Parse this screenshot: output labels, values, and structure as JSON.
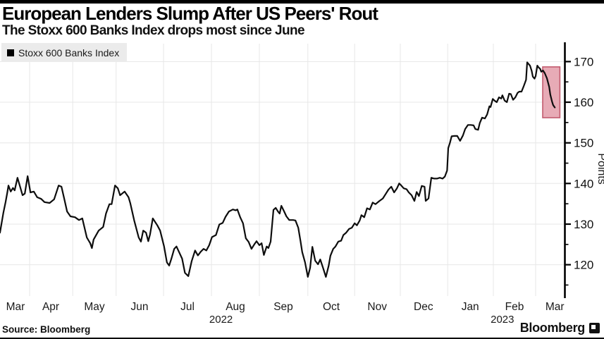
{
  "header": {
    "title": "European Lenders Slump After US Peers' Rout",
    "subtitle": "The Stoxx 600 Banks Index drops most since June"
  },
  "legend": {
    "label": "Stoxx 600 Banks Index",
    "marker_color": "#000000",
    "bg_color": "#ebebeb"
  },
  "footer": {
    "source": "Source: Bloomberg",
    "brand": "Bloomberg"
  },
  "chart_data": {
    "type": "line",
    "title": "European Lenders Slump After US Peers' Rout",
    "subtitle": "The Stoxx 600 Banks Index drops most since June",
    "ylabel": "Points",
    "xlabel": "",
    "x_range": [
      "Mar 2022",
      "Mar 2023"
    ],
    "grid": true,
    "grid_color": "#e7e7e7",
    "line_color": "#0d0d0d",
    "axis_color": "#000000",
    "y_axis": {
      "major_ticks": [
        120,
        130,
        140,
        150,
        160,
        170
      ],
      "minor_ticks": [
        115,
        125,
        135,
        145,
        155,
        165
      ],
      "vmin": 112.3,
      "vmax": 174.4
    },
    "x_axis": {
      "gridlines_t": [
        0.0525,
        0.129,
        0.206,
        0.29,
        0.375,
        0.46,
        0.546,
        0.629,
        0.71,
        0.794,
        0.875,
        0.95
      ],
      "month_labels": [
        {
          "text": "Mar",
          "t": 0.0275
        },
        {
          "text": "Apr",
          "t": 0.09
        },
        {
          "text": "May",
          "t": 0.1675
        },
        {
          "text": "Jun",
          "t": 0.2475
        },
        {
          "text": "Jul",
          "t": 0.3325
        },
        {
          "text": "Aug",
          "t": 0.4175
        },
        {
          "text": "Sep",
          "t": 0.5025
        },
        {
          "text": "Oct",
          "t": 0.5875
        },
        {
          "text": "Nov",
          "t": 0.669
        },
        {
          "text": "Dec",
          "t": 0.751
        },
        {
          "text": "Jan",
          "t": 0.834
        },
        {
          "text": "Feb",
          "t": 0.9125
        },
        {
          "text": "Mar",
          "t": 0.984
        }
      ],
      "year_labels": [
        {
          "text": "2022",
          "t": 0.392
        },
        {
          "text": "2023",
          "t": 0.891
        }
      ]
    },
    "highlight": {
      "name": "recent-slump-highlight",
      "t0": 0.9625,
      "t1": 0.993,
      "v0": 156.2,
      "v1": 168.7,
      "fill": "#e7abb6",
      "stroke": "#c25b6e"
    },
    "series": [
      {
        "name": "Stoxx 600 Banks Index",
        "color": "#0d0d0d",
        "points": [
          [
            0.0,
            127.9
          ],
          [
            0.006,
            132.8
          ],
          [
            0.01,
            135.5
          ],
          [
            0.013,
            137.8
          ],
          [
            0.015,
            139.5
          ],
          [
            0.019,
            138.0
          ],
          [
            0.023,
            138.9
          ],
          [
            0.026,
            138.3
          ],
          [
            0.031,
            141.4
          ],
          [
            0.035,
            139.5
          ],
          [
            0.04,
            137.1
          ],
          [
            0.044,
            137.5
          ],
          [
            0.049,
            141.8
          ],
          [
            0.054,
            137.8
          ],
          [
            0.06,
            138.0
          ],
          [
            0.066,
            136.6
          ],
          [
            0.073,
            136.2
          ],
          [
            0.079,
            135.4
          ],
          [
            0.088,
            135.2
          ],
          [
            0.096,
            136.1
          ],
          [
            0.104,
            139.5
          ],
          [
            0.109,
            139.2
          ],
          [
            0.114,
            136.2
          ],
          [
            0.119,
            133.1
          ],
          [
            0.125,
            131.9
          ],
          [
            0.133,
            131.7
          ],
          [
            0.14,
            131.0
          ],
          [
            0.146,
            131.4
          ],
          [
            0.154,
            126.7
          ],
          [
            0.16,
            125.3
          ],
          [
            0.163,
            124.1
          ],
          [
            0.166,
            126.2
          ],
          [
            0.175,
            128.4
          ],
          [
            0.183,
            129.3
          ],
          [
            0.188,
            132.6
          ],
          [
            0.194,
            134.9
          ],
          [
            0.198,
            134.9
          ],
          [
            0.204,
            139.5
          ],
          [
            0.209,
            138.8
          ],
          [
            0.213,
            137.1
          ],
          [
            0.221,
            138.0
          ],
          [
            0.228,
            136.6
          ],
          [
            0.231,
            135.2
          ],
          [
            0.238,
            130.9
          ],
          [
            0.246,
            126.7
          ],
          [
            0.25,
            125.7
          ],
          [
            0.254,
            128.4
          ],
          [
            0.259,
            127.9
          ],
          [
            0.263,
            125.8
          ],
          [
            0.266,
            127.4
          ],
          [
            0.271,
            131.4
          ],
          [
            0.279,
            129.7
          ],
          [
            0.284,
            128.4
          ],
          [
            0.291,
            124.5
          ],
          [
            0.296,
            120.6
          ],
          [
            0.3,
            119.8
          ],
          [
            0.304,
            121.5
          ],
          [
            0.309,
            123.9
          ],
          [
            0.313,
            124.5
          ],
          [
            0.316,
            123.6
          ],
          [
            0.323,
            121.5
          ],
          [
            0.328,
            118.0
          ],
          [
            0.334,
            117.2
          ],
          [
            0.34,
            120.9
          ],
          [
            0.346,
            123.5
          ],
          [
            0.351,
            122.3
          ],
          [
            0.356,
            123.2
          ],
          [
            0.361,
            123.9
          ],
          [
            0.366,
            123.5
          ],
          [
            0.371,
            124.8
          ],
          [
            0.376,
            126.8
          ],
          [
            0.383,
            127.3
          ],
          [
            0.389,
            129.9
          ],
          [
            0.395,
            130.3
          ],
          [
            0.4,
            131.8
          ],
          [
            0.406,
            133.1
          ],
          [
            0.413,
            133.6
          ],
          [
            0.418,
            133.4
          ],
          [
            0.421,
            133.6
          ],
          [
            0.426,
            131.7
          ],
          [
            0.431,
            130.2
          ],
          [
            0.436,
            126.5
          ],
          [
            0.441,
            125.6
          ],
          [
            0.446,
            123.9
          ],
          [
            0.451,
            125.0
          ],
          [
            0.455,
            125.8
          ],
          [
            0.46,
            124.8
          ],
          [
            0.464,
            125.3
          ],
          [
            0.468,
            122.4
          ],
          [
            0.473,
            124.5
          ],
          [
            0.476,
            124.1
          ],
          [
            0.48,
            125.7
          ],
          [
            0.485,
            133.5
          ],
          [
            0.489,
            134.0
          ],
          [
            0.493,
            133.1
          ],
          [
            0.496,
            132.6
          ],
          [
            0.499,
            134.5
          ],
          [
            0.504,
            133.1
          ],
          [
            0.508,
            131.9
          ],
          [
            0.513,
            131.0
          ],
          [
            0.52,
            131.0
          ],
          [
            0.524,
            130.9
          ],
          [
            0.529,
            129.1
          ],
          [
            0.533,
            125.8
          ],
          [
            0.536,
            123.1
          ],
          [
            0.541,
            120.6
          ],
          [
            0.546,
            117.0
          ],
          [
            0.55,
            119.2
          ],
          [
            0.554,
            124.4
          ],
          [
            0.559,
            121.0
          ],
          [
            0.564,
            120.1
          ],
          [
            0.568,
            121.3
          ],
          [
            0.573,
            119.2
          ],
          [
            0.578,
            117.0
          ],
          [
            0.583,
            119.8
          ],
          [
            0.586,
            122.2
          ],
          [
            0.591,
            123.9
          ],
          [
            0.595,
            124.5
          ],
          [
            0.6,
            125.7
          ],
          [
            0.605,
            125.9
          ],
          [
            0.609,
            127.3
          ],
          [
            0.614,
            127.9
          ],
          [
            0.619,
            128.8
          ],
          [
            0.624,
            129.1
          ],
          [
            0.629,
            130.2
          ],
          [
            0.633,
            129.7
          ],
          [
            0.638,
            130.9
          ],
          [
            0.641,
            132.2
          ],
          [
            0.646,
            131.7
          ],
          [
            0.651,
            133.9
          ],
          [
            0.656,
            133.6
          ],
          [
            0.661,
            135.3
          ],
          [
            0.666,
            134.9
          ],
          [
            0.673,
            135.7
          ],
          [
            0.679,
            136.3
          ],
          [
            0.684,
            137.4
          ],
          [
            0.689,
            138.5
          ],
          [
            0.694,
            139.2
          ],
          [
            0.699,
            137.8
          ],
          [
            0.704,
            138.8
          ],
          [
            0.708,
            140.0
          ],
          [
            0.711,
            139.6
          ],
          [
            0.716,
            138.8
          ],
          [
            0.721,
            138.6
          ],
          [
            0.725,
            137.8
          ],
          [
            0.73,
            137.1
          ],
          [
            0.735,
            135.7
          ],
          [
            0.739,
            137.9
          ],
          [
            0.743,
            136.9
          ],
          [
            0.748,
            139.4
          ],
          [
            0.753,
            139.2
          ],
          [
            0.755,
            135.7
          ],
          [
            0.76,
            136.3
          ],
          [
            0.765,
            141.4
          ],
          [
            0.77,
            141.2
          ],
          [
            0.775,
            141.2
          ],
          [
            0.78,
            141.4
          ],
          [
            0.785,
            141.2
          ],
          [
            0.789,
            141.7
          ],
          [
            0.793,
            143.2
          ],
          [
            0.795,
            148.7
          ],
          [
            0.798,
            150.0
          ],
          [
            0.801,
            151.6
          ],
          [
            0.806,
            151.7
          ],
          [
            0.811,
            151.7
          ],
          [
            0.816,
            150.5
          ],
          [
            0.821,
            151.8
          ],
          [
            0.825,
            153.4
          ],
          [
            0.83,
            154.4
          ],
          [
            0.835,
            154.4
          ],
          [
            0.84,
            154.3
          ],
          [
            0.843,
            153.4
          ],
          [
            0.848,
            153.2
          ],
          [
            0.851,
            154.9
          ],
          [
            0.855,
            156.2
          ],
          [
            0.86,
            156.0
          ],
          [
            0.864,
            157.0
          ],
          [
            0.868,
            159.0
          ],
          [
            0.87,
            158.8
          ],
          [
            0.874,
            160.8
          ],
          [
            0.878,
            160.3
          ],
          [
            0.881,
            160.0
          ],
          [
            0.885,
            161.2
          ],
          [
            0.889,
            160.9
          ],
          [
            0.891,
            161.7
          ],
          [
            0.895,
            160.4
          ],
          [
            0.899,
            160.0
          ],
          [
            0.903,
            162.1
          ],
          [
            0.906,
            162.0
          ],
          [
            0.91,
            160.6
          ],
          [
            0.914,
            161.2
          ],
          [
            0.918,
            162.3
          ],
          [
            0.921,
            162.6
          ],
          [
            0.925,
            162.6
          ],
          [
            0.929,
            164.0
          ],
          [
            0.933,
            165.5
          ],
          [
            0.935,
            169.8
          ],
          [
            0.94,
            169.0
          ],
          [
            0.943,
            167.7
          ],
          [
            0.945,
            166.3
          ],
          [
            0.948,
            165.8
          ],
          [
            0.95,
            166.4
          ],
          [
            0.953,
            169.0
          ],
          [
            0.955,
            168.6
          ],
          [
            0.958,
            168.2
          ],
          [
            0.96,
            167.5
          ],
          [
            0.963,
            167.8
          ],
          [
            0.966,
            167.2
          ],
          [
            0.97,
            165.9
          ],
          [
            0.974,
            163.8
          ],
          [
            0.976,
            161.9
          ],
          [
            0.979,
            160.2
          ],
          [
            0.981,
            159.3
          ],
          [
            0.984,
            158.7
          ]
        ]
      }
    ]
  }
}
